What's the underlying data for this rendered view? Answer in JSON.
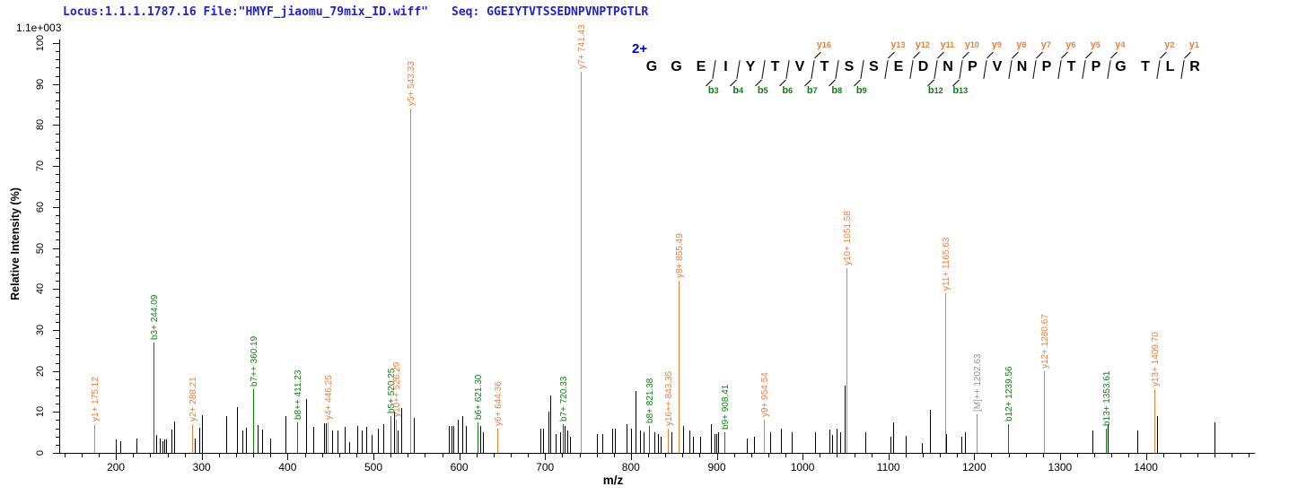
{
  "header": {
    "locus_file": "Locus:1.1.1.1787.16 File:\"HMYF_jiaomu_79mix_ID.wiff\"",
    "seq_label": "Seq:",
    "sequence": "GGEIYTVTSSEDNPVNPTPGTLR",
    "max_intensity": "1.1e+003"
  },
  "colors": {
    "y_ion": "#e87f3e",
    "b_ion": "#0f7d0f",
    "precursor": "#909090",
    "unassigned": "#000000",
    "header_blue": "#2222cc",
    "charge_blue": "#0000e6"
  },
  "sequence_panel": {
    "charge": "2+",
    "residues": [
      "G",
      "G",
      "E",
      "I",
      "Y",
      "T",
      "V",
      "T",
      "S",
      "S",
      "E",
      "D",
      "N",
      "P",
      "V",
      "N",
      "P",
      "T",
      "P",
      "G",
      "T",
      "L",
      "R"
    ],
    "y_ions": [
      {
        "label": "y16",
        "site": 7
      },
      {
        "label": "y13",
        "site": 10
      },
      {
        "label": "y12",
        "site": 11
      },
      {
        "label": "y11",
        "site": 12
      },
      {
        "label": "y10",
        "site": 13
      },
      {
        "label": "y9",
        "site": 14
      },
      {
        "label": "y8",
        "site": 15
      },
      {
        "label": "y7",
        "site": 16
      },
      {
        "label": "y6",
        "site": 17
      },
      {
        "label": "y5",
        "site": 18
      },
      {
        "label": "y4",
        "site": 19
      },
      {
        "label": "y2",
        "site": 21
      },
      {
        "label": "y1",
        "site": 22
      }
    ],
    "b_ions": [
      {
        "label": "b3",
        "site": 3
      },
      {
        "label": "b4",
        "site": 4
      },
      {
        "label": "b5",
        "site": 5
      },
      {
        "label": "b6",
        "site": 6
      },
      {
        "label": "b7",
        "site": 7
      },
      {
        "label": "b8",
        "site": 8
      },
      {
        "label": "b9",
        "site": 9
      },
      {
        "label": "b12",
        "site": 12
      },
      {
        "label": "b13",
        "site": 13
      }
    ]
  },
  "chart_data": {
    "type": "bar",
    "variant": "centroid-ms2-spectrum",
    "title": "",
    "xlabel": "m/z",
    "ylabel": "Relative  Intensity (%)",
    "x_axis": {
      "min": 134,
      "max": 1527,
      "major_ticks": [
        200,
        300,
        400,
        500,
        600,
        700,
        800,
        900,
        1000,
        1100,
        1200,
        1300,
        1400
      ],
      "minor_step": 20
    },
    "y_axis": {
      "min": 0,
      "max": 100,
      "major_step": 10,
      "minor_step": 2,
      "major_ticks": [
        0,
        10,
        20,
        30,
        40,
        50,
        60,
        70,
        80,
        90,
        100
      ]
    },
    "annotated_peaks": [
      {
        "label": "y1+ 175.12",
        "series": "y",
        "mz": 175.12,
        "intensity": 7
      },
      {
        "label": "b3+ 244.09",
        "series": "b",
        "mz": 244.09,
        "intensity": 27
      },
      {
        "label": "y2+ 288.21",
        "series": "y",
        "mz": 288.21,
        "intensity": 7
      },
      {
        "label": "b7++ 360.19",
        "series": "b",
        "mz": 360.19,
        "intensity": 15.5
      },
      {
        "label": "b8++ 411.23",
        "series": "b",
        "mz": 411.23,
        "intensity": 7.5
      },
      {
        "label": "y4+ 446.25",
        "series": "y",
        "mz": 446.25,
        "intensity": 7.5
      },
      {
        "label": "b5+ 520.25",
        "series": "b",
        "mz": 520.25,
        "intensity": 9
      },
      {
        "label": "y10++ 526.29",
        "series": "y",
        "mz": 526.29,
        "intensity": 8
      },
      {
        "label": "y5+ 543.33",
        "series": "y",
        "mz": 543.33,
        "intensity": 84
      },
      {
        "label": "b6+ 621.30",
        "series": "b",
        "mz": 621.3,
        "intensity": 7.5
      },
      {
        "label": "y6+ 644.36",
        "series": "y",
        "mz": 644.36,
        "intensity": 6
      },
      {
        "label": "b7+ 720.33",
        "series": "b",
        "mz": 720.33,
        "intensity": 7
      },
      {
        "label": "y7+ 741.43",
        "series": "y",
        "mz": 741.43,
        "intensity": 93
      },
      {
        "label": "b8+ 821.38",
        "series": "b",
        "mz": 821.38,
        "intensity": 6.5
      },
      {
        "label": "y16++ 843.35",
        "series": "y",
        "mz": 843.35,
        "intensity": 6
      },
      {
        "label": "y8+ 855.49",
        "series": "y",
        "mz": 855.49,
        "intensity": 42
      },
      {
        "label": "b9+ 908.41",
        "series": "b",
        "mz": 908.41,
        "intensity": 5
      },
      {
        "label": "y9+ 954.54",
        "series": "y",
        "mz": 954.54,
        "intensity": 8
      },
      {
        "label": "y10+ 1051.58",
        "series": "y",
        "mz": 1051.58,
        "intensity": 45
      },
      {
        "label": "y11+ 1165.63",
        "series": "y",
        "mz": 1165.63,
        "intensity": 39
      },
      {
        "label": "[M]++ 1202.63",
        "series": "M",
        "mz": 1202.63,
        "intensity": 9.5
      },
      {
        "label": "b12+ 1239.56",
        "series": "b",
        "mz": 1239.56,
        "intensity": 7
      },
      {
        "label": "y12+ 1280.67",
        "series": "y",
        "mz": 1280.67,
        "intensity": 20
      },
      {
        "label": "b13+ 1353.61",
        "series": "b",
        "mz": 1353.61,
        "intensity": 6
      },
      {
        "label": "y13+ 1409.70",
        "series": "y",
        "mz": 1409.7,
        "intensity": 15.5
      }
    ],
    "unassigned_peaks": [
      [
        200,
        3.3
      ],
      [
        205,
        2.9
      ],
      [
        224,
        3.6
      ],
      [
        247,
        4.4
      ],
      [
        251,
        3.6
      ],
      [
        254,
        2.9
      ],
      [
        256.5,
        3.3
      ],
      [
        258.5,
        3.3
      ],
      [
        265,
        5.8
      ],
      [
        267.5,
        7.7
      ],
      [
        292,
        3.6
      ],
      [
        297,
        6.2
      ],
      [
        300,
        9.1
      ],
      [
        328,
        8.9
      ],
      [
        341,
        11.2
      ],
      [
        347,
        5.4
      ],
      [
        351,
        6.2
      ],
      [
        365,
        6.9
      ],
      [
        370,
        5.8
      ],
      [
        380,
        3.6
      ],
      [
        397,
        9.0
      ],
      [
        422,
        13.1
      ],
      [
        430,
        6.3
      ],
      [
        442.5,
        7.3
      ],
      [
        444.5,
        7.3
      ],
      [
        452,
        5.5
      ],
      [
        458,
        5.5
      ],
      [
        466,
        6.4
      ],
      [
        472,
        2.6
      ],
      [
        481,
        6.6
      ],
      [
        486,
        5.5
      ],
      [
        492,
        6.4
      ],
      [
        498,
        4.4
      ],
      [
        505,
        6.0
      ],
      [
        512,
        7.0
      ],
      [
        524,
        10.0
      ],
      [
        528,
        5.5
      ],
      [
        532.5,
        11.0
      ],
      [
        547.5,
        8.5
      ],
      [
        588,
        6.5
      ],
      [
        590.5,
        6.5
      ],
      [
        593,
        6.5
      ],
      [
        598.5,
        8.0
      ],
      [
        604,
        9.0
      ],
      [
        608,
        6.5
      ],
      [
        624.5,
        6.5
      ],
      [
        628,
        5.0
      ],
      [
        694,
        6.0
      ],
      [
        698,
        6.0
      ],
      [
        703.5,
        10.0
      ],
      [
        706,
        14.0
      ],
      [
        712,
        4.5
      ],
      [
        718,
        5.0
      ],
      [
        723,
        6.5
      ],
      [
        725.5,
        5.5
      ],
      [
        728.5,
        4.0
      ],
      [
        760,
        4.5
      ],
      [
        766.5,
        4.5
      ],
      [
        778,
        6.0
      ],
      [
        781,
        6.0
      ],
      [
        795,
        7.0
      ],
      [
        800.5,
        6.0
      ],
      [
        805.5,
        15.0
      ],
      [
        810.5,
        5.5
      ],
      [
        815,
        5.0
      ],
      [
        827,
        5.0
      ],
      [
        831,
        4.5
      ],
      [
        835,
        4.0
      ],
      [
        847.5,
        5.0
      ],
      [
        860.5,
        6.5
      ],
      [
        868,
        5.5
      ],
      [
        872,
        4.0
      ],
      [
        880.5,
        4.0
      ],
      [
        893,
        7.0
      ],
      [
        897,
        4.5
      ],
      [
        899.5,
        4.5
      ],
      [
        901.5,
        5.0
      ],
      [
        935,
        3.5
      ],
      [
        943.5,
        4.0
      ],
      [
        962,
        5.0
      ],
      [
        975,
        6.0
      ],
      [
        987.5,
        5.0
      ],
      [
        1014,
        5.0
      ],
      [
        1031,
        5.8
      ],
      [
        1034,
        4.4
      ],
      [
        1040,
        6.0
      ],
      [
        1043.5,
        5.0
      ],
      [
        1048.5,
        16.4
      ],
      [
        1073,
        5.0
      ],
      [
        1102,
        4.0
      ],
      [
        1105.5,
        7.5
      ],
      [
        1120.5,
        4.2
      ],
      [
        1139,
        2.5
      ],
      [
        1148,
        10.6
      ],
      [
        1167.5,
        4.5
      ],
      [
        1184.5,
        4.0
      ],
      [
        1189.5,
        5.0
      ],
      [
        1338,
        5.5
      ],
      [
        1355.5,
        7.0
      ],
      [
        1390,
        5.5
      ],
      [
        1413,
        9.0
      ],
      [
        1480,
        7.5
      ]
    ]
  }
}
